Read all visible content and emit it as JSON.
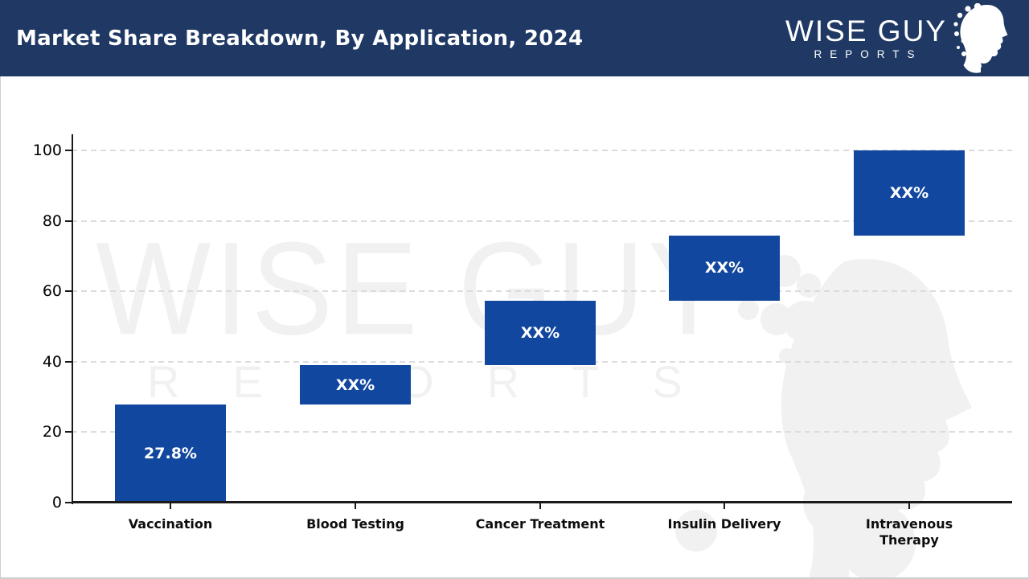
{
  "header": {
    "title": "Market Share Breakdown, By Application, 2024",
    "logo": {
      "line1": "WISE GUY",
      "line2": "REPORTS"
    }
  },
  "watermark": {
    "line1": "WISE GUY",
    "line2": "REPORTS"
  },
  "chart_data": {
    "type": "bar",
    "subtype": "waterfall",
    "title": "Market Share Breakdown, By Application, 2024",
    "categories": [
      "Vaccination",
      "Blood Testing",
      "Cancer Treatment",
      "Insulin Delivery",
      "Intravenous Therapy"
    ],
    "segments": [
      {
        "category": "Vaccination",
        "start": 0,
        "end": 27.8,
        "label": "27.8%"
      },
      {
        "category": "Blood Testing",
        "start": 27.8,
        "end": 39.0,
        "label": "XX%"
      },
      {
        "category": "Cancer Treatment",
        "start": 39.0,
        "end": 57.4,
        "label": "XX%"
      },
      {
        "category": "Insulin Delivery",
        "start": 57.4,
        "end": 75.8,
        "label": "XX%"
      },
      {
        "category": "Intravenous Therapy",
        "start": 75.8,
        "end": 100,
        "label": "XX%"
      }
    ],
    "label_lines": [
      [
        "Vaccination"
      ],
      [
        "Blood Testing"
      ],
      [
        "Cancer Treatment"
      ],
      [
        "Insulin Delivery"
      ],
      [
        "Intravenous",
        "Therapy"
      ]
    ],
    "yticks": [
      0,
      20,
      40,
      60,
      80,
      100
    ],
    "ylim": [
      0,
      100
    ],
    "xlabel": "",
    "ylabel": "",
    "grid": "horizontal-dashed",
    "legend": "none",
    "bar_color": "#11479e",
    "bar_label_color": "#ffffff"
  },
  "colors": {
    "header_bg": "#1f3864",
    "header_text": "#ffffff",
    "bar": "#11479e",
    "watermark": "#f1f1f1",
    "axis": "#1a1a1a",
    "gridline": "#dcdcdc",
    "tick_text": "#000000"
  }
}
